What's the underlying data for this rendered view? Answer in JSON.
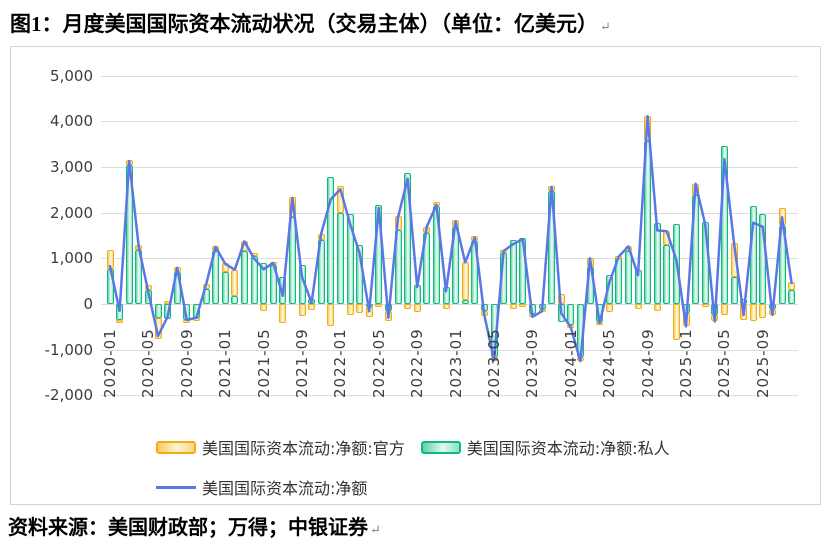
{
  "title": {
    "text": "图1：月度美国国际资本流动状况（交易主体）（单位：亿美元）",
    "paragraph_mark": "↵"
  },
  "source": {
    "text": "资料来源：美国财政部；万得；中银证券",
    "paragraph_mark": "↵"
  },
  "legend": {
    "official_label": "美国国际资本流动:净额:官方",
    "private_label": "美国国际资本流动:净额:私人",
    "net_label": "美国国际资本流动:净额"
  },
  "colors": {
    "official_border": "#f0ad18",
    "private_border": "#14b77e",
    "net_line": "#5b76e8",
    "gridline": "#dcdcdc",
    "axis_text": "#3d3d3d"
  },
  "chart_data": {
    "type": "bar",
    "subtype": "stacked-bars-with-line",
    "unit": "亿美元",
    "grid": true,
    "legend_position": "bottom",
    "x_tick_every": 4,
    "y_axis": {
      "range": [
        -2000,
        5000
      ],
      "tick_values": [
        5000,
        4000,
        3000,
        2000,
        1000,
        0,
        -1000,
        -2000
      ],
      "tick_labels": [
        "5,000",
        "4,000",
        "3,000",
        "2,000",
        "1,000",
        "0",
        "-1,000",
        "-2,000"
      ]
    },
    "categories": [
      "2020-01",
      "2020-02",
      "2020-03",
      "2020-04",
      "2020-05",
      "2020-06",
      "2020-07",
      "2020-08",
      "2020-09",
      "2020-10",
      "2020-11",
      "2020-12",
      "2021-01",
      "2021-02",
      "2021-03",
      "2021-04",
      "2021-05",
      "2021-06",
      "2021-07",
      "2021-08",
      "2021-09",
      "2021-10",
      "2021-11",
      "2021-12",
      "2022-01",
      "2022-02",
      "2022-03",
      "2022-04",
      "2022-05",
      "2022-06",
      "2022-07",
      "2022-08",
      "2022-09",
      "2022-10",
      "2022-11",
      "2022-12",
      "2023-01",
      "2023-02",
      "2023-03",
      "2023-04",
      "2023-05",
      "2023-06",
      "2023-07",
      "2023-08",
      "2023-09",
      "2023-10",
      "2023-11",
      "2023-12",
      "2024-01",
      "2024-02",
      "2024-03",
      "2024-04",
      "2024-05",
      "2024-06",
      "2024-07",
      "2024-08",
      "2024-09",
      "2024-10",
      "2024-11",
      "2024-12",
      "2025-01",
      "2025-02",
      "2025-03",
      "2025-04",
      "2025-05",
      "2025-06",
      "2025-07",
      "2025-08",
      "2025-09",
      "2025-10",
      "2025-11",
      "2025-12"
    ],
    "series": [
      {
        "name": "美国国际资本流动:净额:官方",
        "render": "bar",
        "values": [
          420,
          -60,
          110,
          120,
          100,
          -460,
          60,
          110,
          -40,
          -30,
          110,
          120,
          210,
          580,
          220,
          70,
          -150,
          50,
          -410,
          450,
          -270,
          -140,
          150,
          -490,
          580,
          -230,
          -200,
          -220,
          -60,
          -220,
          290,
          -120,
          -170,
          130,
          90,
          -110,
          150,
          815,
          110,
          -110,
          -100,
          60,
          -110,
          -30,
          -60,
          -60,
          120,
          210,
          -60,
          -100,
          180,
          -30,
          -180,
          40,
          110,
          -120,
          550,
          -160,
          290,
          -780,
          -290,
          250,
          -50,
          -150,
          -250,
          760,
          -340,
          -370,
          -300,
          -120,
          400,
          180
        ]
      },
      {
        "name": "美国国际资本流动:净额:私人",
        "render": "bar",
        "values": [
          760,
          -340,
          3040,
          1180,
          310,
          -300,
          -330,
          700,
          -340,
          -310,
          320,
          1150,
          690,
          170,
          1150,
          1040,
          900,
          860,
          580,
          1900,
          850,
          120,
          1390,
          2770,
          2000,
          1980,
          1300,
          -60,
          2160,
          -160,
          1630,
          2870,
          420,
          1560,
          2150,
          380,
          1680,
          95,
          1370,
          -160,
          -1150,
          1120,
          1410,
          1450,
          -220,
          -100,
          2470,
          -400,
          -450,
          -1150,
          820,
          -390,
          640,
          1000,
          1150,
          750,
          3560,
          1770,
          1300,
          1740,
          -200,
          2380,
          1790,
          -230,
          3460,
          580,
          100,
          2150,
          1980,
          -120,
          1700,
          310
        ]
      },
      {
        "name": "美国国际资本流动:净额",
        "render": "line",
        "values": [
          830,
          -150,
          3130,
          1240,
          250,
          -700,
          -280,
          790,
          -350,
          -300,
          420,
          1250,
          880,
          750,
          1370,
          1000,
          760,
          900,
          180,
          2320,
          590,
          30,
          1540,
          2290,
          2510,
          1760,
          1110,
          -160,
          2100,
          -300,
          1890,
          2740,
          370,
          1690,
          2170,
          280,
          1800,
          910,
          1450,
          -250,
          -1230,
          1160,
          1310,
          1420,
          -280,
          -160,
          2560,
          -200,
          -510,
          -1250,
          1000,
          -420,
          460,
          1040,
          1260,
          630,
          4110,
          1610,
          1590,
          960,
          -490,
          2630,
          1740,
          -380,
          3170,
          1340,
          -240,
          1780,
          1690,
          -240,
          1900,
          460
        ]
      }
    ]
  }
}
